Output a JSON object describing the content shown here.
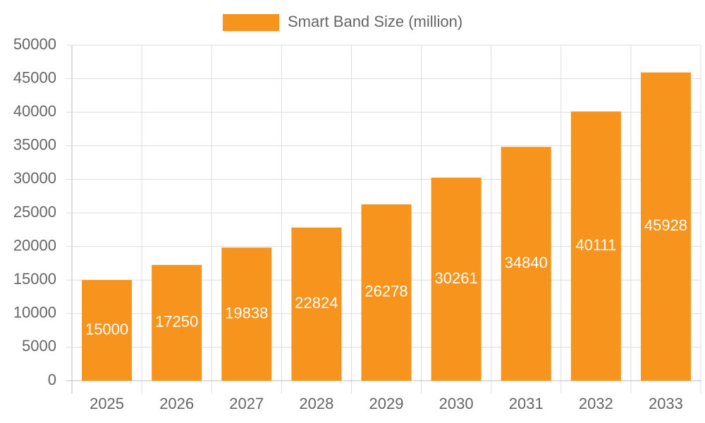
{
  "chart_data": {
    "type": "bar",
    "categories": [
      "2025",
      "2026",
      "2027",
      "2028",
      "2029",
      "2030",
      "2031",
      "2032",
      "2033"
    ],
    "series": [
      {
        "name": "Smart Band Size (million)",
        "color": "#f7941d",
        "values": [
          15000,
          17250,
          19838,
          22824,
          26278,
          30261,
          34840,
          40111,
          45928
        ]
      }
    ],
    "ylim": [
      0,
      50000
    ],
    "yticks": [
      0,
      5000,
      10000,
      15000,
      20000,
      25000,
      30000,
      35000,
      40000,
      45000,
      50000
    ],
    "grid": true,
    "legend": "top"
  }
}
